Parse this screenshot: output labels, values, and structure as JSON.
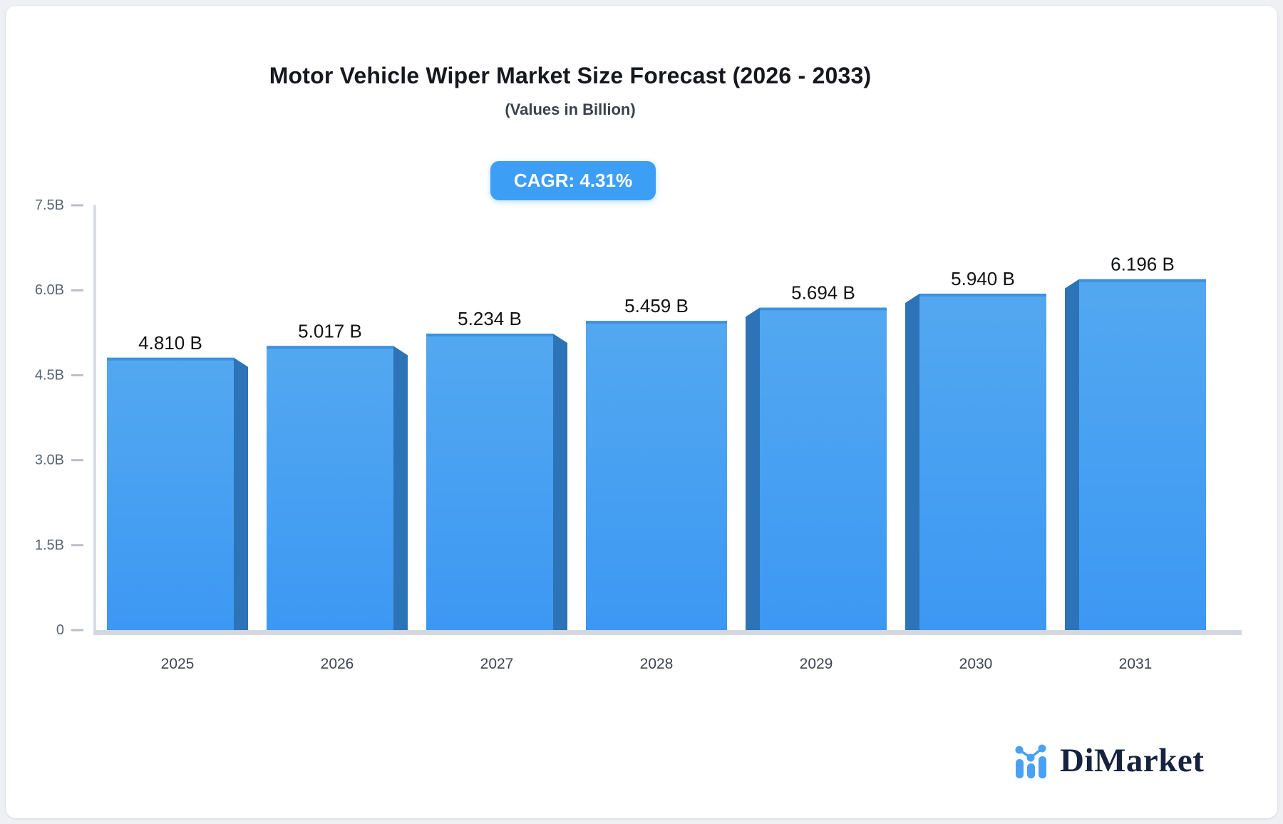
{
  "header": {
    "title": "Motor Vehicle Wiper Market Size Forecast (2026 - 2033)",
    "subtitle": "(Values in Billion)"
  },
  "badge": {
    "label": "CAGR: 4.31%",
    "background": "#3d9ef5",
    "text_color": "#ffffff"
  },
  "chart_data": {
    "type": "bar",
    "title": "Motor Vehicle Wiper Market Size Forecast (2026 - 2033)",
    "subtitle": "(Values in Billion)",
    "unit": "Billion",
    "cagr": "4.31%",
    "categories": [
      "2025",
      "2026",
      "2027",
      "2028",
      "2029",
      "2030",
      "2031"
    ],
    "values": [
      4.81,
      5.017,
      5.234,
      5.459,
      5.694,
      5.94,
      6.196
    ],
    "value_labels": [
      "4.810 B",
      "5.017 B",
      "5.234 B",
      "5.459 B",
      "5.694 B",
      "5.940 B",
      "6.196 B"
    ],
    "ylim": [
      0,
      7.5
    ],
    "yticks": [
      {
        "label": "7.5B",
        "value": 7.5
      },
      {
        "label": "6.0B",
        "value": 6.0
      },
      {
        "label": "4.5B",
        "value": 4.5
      },
      {
        "label": "3.0B",
        "value": 3.0
      },
      {
        "label": "1.5B",
        "value": 1.5
      },
      {
        "label": "0",
        "value": 0
      }
    ],
    "grid": false,
    "legend": false,
    "bar_3d_sides": [
      "right",
      "right",
      "right",
      "none",
      "left",
      "left",
      "left"
    ],
    "colors": {
      "bar_gradient_top": "#53a8f0",
      "bar_gradient_bottom": "#3c98f3",
      "bar_top_edge": "#3e91e0",
      "bar_bevel": "#2d73b7",
      "axis_line": "#d8dce3",
      "baseline": "#d4d8de",
      "tick_dash": "#b9bfc9",
      "tick_text": "#5a6472",
      "category_text": "#3c4454",
      "value_text": "#101214"
    }
  },
  "brand": {
    "name": "DiMarket",
    "text_color": "#16233e",
    "icon": "bar-line-chart-icon",
    "icon_color": "#49a1f6"
  }
}
